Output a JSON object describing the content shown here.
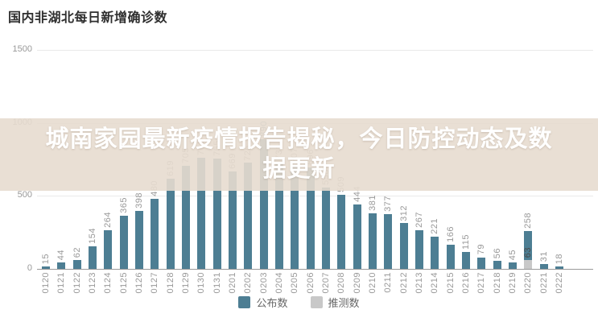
{
  "header": {
    "title": "国内非湖北每日新增确诊数"
  },
  "overlay_banner": {
    "line1": "城南家园最新疫情报告揭秘，今日防控动态及数",
    "line2": "据更新",
    "full_text": "城南家园最新疫情报告揭秘，今日防控动态及数据更新",
    "bg_color": "#e7dbcf",
    "text_color": "#ffffff"
  },
  "legend": {
    "items": [
      {
        "label": "公布数",
        "color": "#4d7e93"
      },
      {
        "label": "推测数",
        "color": "#c8c8c8"
      }
    ]
  },
  "colors": {
    "bar_published": "#4d7e93",
    "bar_estimated": "#c8c8c8",
    "value_label": "#999999",
    "value_label_max": "#6f93a3",
    "estimated_label": "#4a4a4a",
    "axis_label": "#999999",
    "gridline": "#e9e9e9",
    "axis_line": "#9a9a9a"
  },
  "chart_data": {
    "type": "bar",
    "title": "国内非湖北每日新增确诊数",
    "categories": [
      "0120",
      "0121",
      "0122",
      "0123",
      "0124",
      "0125",
      "0126",
      "0127",
      "0128",
      "0129",
      "0130",
      "0131",
      "0201",
      "0202",
      "0203",
      "0204",
      "0205",
      "0206",
      "0207",
      "0208",
      "0209",
      "0210",
      "0211",
      "0212",
      "0213",
      "0214",
      "0215",
      "0216",
      "0217",
      "0218",
      "0219",
      "0220",
      "0221",
      "0222"
    ],
    "series": [
      {
        "name": "公布数",
        "values": [
          15,
          44,
          62,
          154,
          264,
          365,
          398,
          480,
          619,
          705,
          762,
          755,
          669,
          726,
          890,
          731,
          707,
          696,
          558,
          509,
          444,
          381,
          377,
          312,
          267,
          221,
          166,
          115,
          79,
          56,
          45,
          258,
          31,
          18
        ]
      },
      {
        "name": "推测数",
        "values": [
          null,
          null,
          null,
          null,
          null,
          null,
          null,
          null,
          null,
          null,
          null,
          null,
          null,
          null,
          null,
          null,
          null,
          null,
          null,
          null,
          null,
          null,
          null,
          null,
          null,
          null,
          null,
          null,
          null,
          null,
          null,
          63,
          null,
          null
        ]
      }
    ],
    "xlabel": "",
    "ylabel": "",
    "ylim": [
      0,
      1500
    ],
    "yticks": [
      0,
      500,
      1000,
      1500
    ],
    "grid": true,
    "legend_position": "bottom",
    "bar_labels": true,
    "label_rotation": 90
  }
}
